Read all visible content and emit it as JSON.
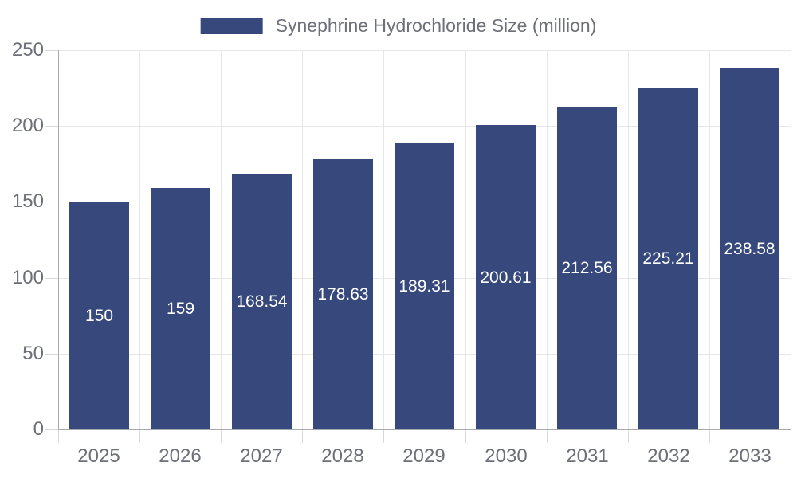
{
  "chart_data": {
    "type": "bar",
    "title": "Synephrine Hydrochloride Size (million)",
    "categories": [
      "2025",
      "2026",
      "2027",
      "2028",
      "2029",
      "2030",
      "2031",
      "2032",
      "2033"
    ],
    "series": [
      {
        "name": "Synephrine Hydrochloride Size (million)",
        "values": [
          150,
          159,
          168.54,
          178.63,
          189.31,
          200.61,
          212.56,
          225.21,
          238.58
        ],
        "value_labels": [
          "150",
          "159",
          "168.54",
          "178.63",
          "189.31",
          "200.61",
          "212.56",
          "225.21",
          "238.58"
        ]
      }
    ],
    "xlabel": "",
    "ylabel": "",
    "ylim": [
      0,
      250
    ],
    "yticks": [
      0,
      50,
      100,
      150,
      200,
      250
    ],
    "ytick_labels": [
      "0",
      "50",
      "100",
      "150",
      "200",
      "250"
    ],
    "grid": true,
    "legend_position": "top",
    "value_labels_inside_bars": true,
    "colors": {
      "bar": "#36487C",
      "value_label_text": "#FFFFFF",
      "axis_text": "#6E7079",
      "legend_text": "#6E7079",
      "axis_line": "#A6A9AD",
      "gridline": "#E6E6E9",
      "tick": "#D6D8DB",
      "background": "#FFFFFF"
    }
  }
}
